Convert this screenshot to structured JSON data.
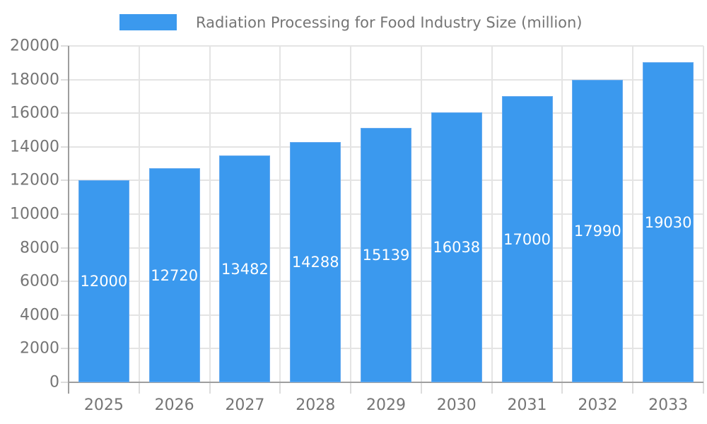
{
  "chart_data": {
    "type": "bar",
    "title": "Radiation Processing for Food Industry Size (million)",
    "categories": [
      "2025",
      "2026",
      "2027",
      "2028",
      "2029",
      "2030",
      "2031",
      "2032",
      "2033"
    ],
    "values": [
      12000,
      12720,
      13482,
      14288,
      15139,
      16038,
      17000,
      17990,
      19030
    ],
    "bar_labels": [
      "12000",
      "12720",
      "13482",
      "14288",
      "15139",
      "16038",
      "17000",
      "17990",
      "19030"
    ],
    "xlabel": "",
    "ylabel": "",
    "ylim": [
      0,
      20000
    ],
    "ytick_step": 2000,
    "yticks": [
      0,
      2000,
      4000,
      6000,
      8000,
      10000,
      12000,
      14000,
      16000,
      18000,
      20000
    ],
    "grid": true,
    "legend_position": "top",
    "colors": {
      "bar": "#3B99EE",
      "bar_edge": "#66AAEF",
      "bar_label": "#FFFFFF",
      "axis_line": "#9E9E9E",
      "grid_line": "#E4E4E4",
      "tick_mark": "#DDDDDD",
      "tick_label": "#757575",
      "legend_text": "#757575",
      "background": "#FFFFFF"
    }
  }
}
